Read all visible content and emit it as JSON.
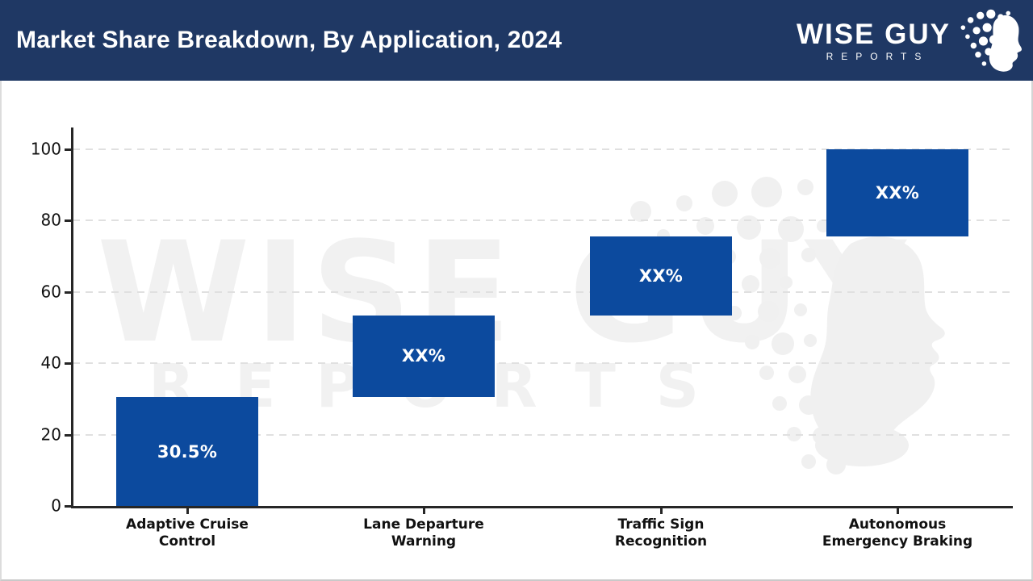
{
  "header": {
    "title": "Market Share Breakdown, By Application, 2024",
    "bg_color": "#1F3864",
    "logo": {
      "name": "WISE GUY",
      "sub": "REPORTS"
    }
  },
  "watermark": {
    "line1": "WISE GUY",
    "line2": "REPORTS"
  },
  "chart_data": {
    "type": "bar",
    "subtype": "floating-waterfall",
    "title": "Market Share Breakdown, By Application, 2024",
    "categories": [
      "Adaptive Cruise Control",
      "Lane Departure Warning",
      "Traffic Sign Recognition",
      "Autonomous Emergency Braking"
    ],
    "category_lines": [
      [
        "Adaptive Cruise",
        "Control"
      ],
      [
        "Lane Departure",
        "Warning"
      ],
      [
        "Traffic Sign",
        "Recognition"
      ],
      [
        "Autonomous",
        "Emergency Braking"
      ]
    ],
    "segments": [
      {
        "start": 0,
        "end": 30.5,
        "label": "30.5%"
      },
      {
        "start": 30.5,
        "end": 53.5,
        "label": "XX%"
      },
      {
        "start": 53.5,
        "end": 75.5,
        "label": "XX%"
      },
      {
        "start": 75.5,
        "end": 100,
        "label": "XX%"
      }
    ],
    "values": [
      30.5,
      23,
      22,
      24.5
    ],
    "y_ticks": [
      0,
      20,
      40,
      60,
      80,
      100
    ],
    "ylim": [
      0,
      105
    ],
    "xlabel": "",
    "ylabel": "",
    "legend": "none",
    "grid": "horizontal-dashed",
    "bar_color": "#0C4A9E",
    "bar_label_color": "#ffffff"
  }
}
